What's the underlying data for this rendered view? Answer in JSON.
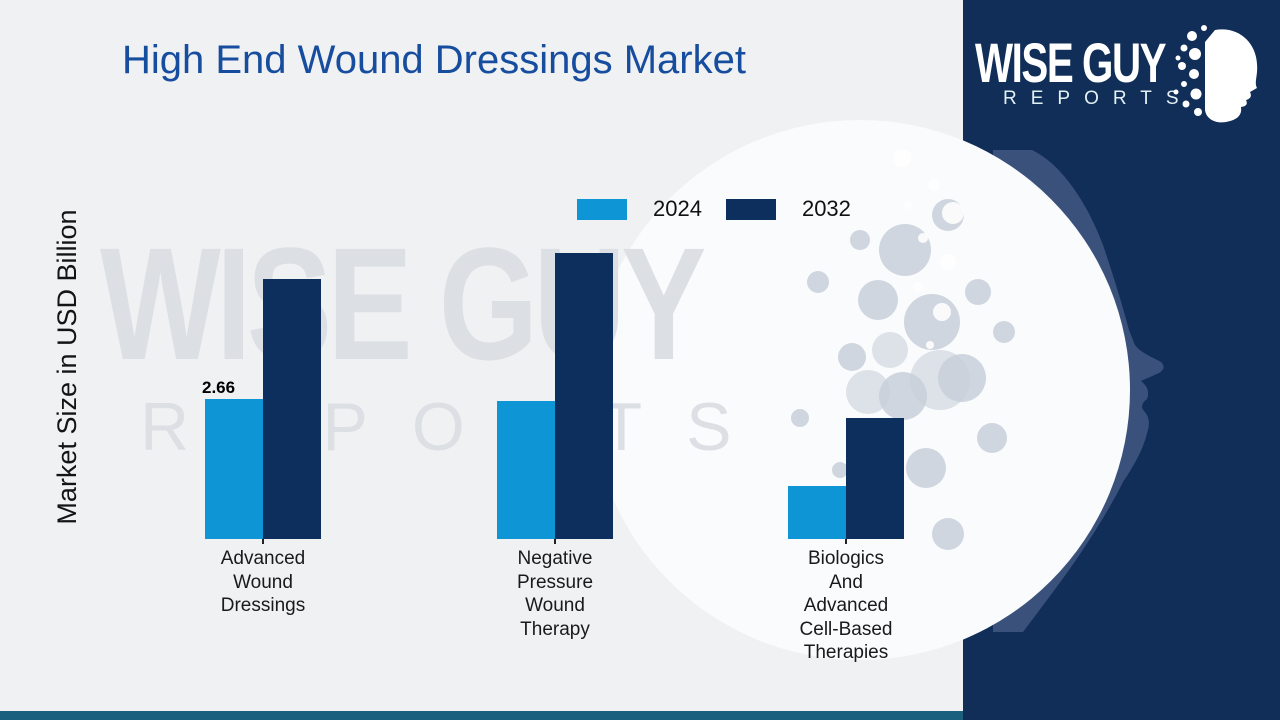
{
  "title": {
    "text": "High End Wound Dressings Market"
  },
  "y_axis": {
    "label": "Market Size in USD Billion"
  },
  "legend": {
    "position": "top-right",
    "items": [
      {
        "label": "2024",
        "color": "#0e95d6"
      },
      {
        "label": "2032",
        "color": "#0d2f5e"
      }
    ]
  },
  "chart_data": {
    "type": "bar",
    "title": "High End Wound Dressings Market",
    "ylabel": "Market Size in USD Billion",
    "xlabel": "",
    "grid": false,
    "ylim": [
      0,
      5.6
    ],
    "legend_position": "top-right",
    "categories": [
      "Advanced Wound Dressings",
      "Negative Pressure Wound Therapy",
      "Biologics And Advanced Cell-Based Therapies"
    ],
    "category_lines": [
      [
        "Advanced",
        "Wound",
        "Dressings"
      ],
      [
        "Negative",
        "Pressure",
        "Wound",
        "Therapy"
      ],
      [
        "Biologics",
        "And",
        "Advanced",
        "Cell-Based",
        "Therapies"
      ]
    ],
    "series": [
      {
        "name": "2024",
        "color": "#0e95d6",
        "values": [
          2.66,
          2.62,
          1.01
        ]
      },
      {
        "name": "2032",
        "color": "#0d2f5e",
        "values": [
          4.94,
          5.43,
          2.3
        ]
      }
    ],
    "data_labels": [
      {
        "series": 0,
        "category": 0,
        "text": "2.66"
      }
    ]
  },
  "watermark": {
    "line1": "WISE GUY",
    "line2": "REPORTS"
  },
  "logo": {
    "line1": "WISE GUY",
    "line2": "REPORTS"
  },
  "colors": {
    "background": "#f0f1f2",
    "panel": "#112e58",
    "panel_face": "#3a527b",
    "circle": "#fafbfd",
    "blob": "#c9d0da",
    "blob_light": "#dde2e8",
    "title": "#164d9e",
    "accent_teal": "#1a607e",
    "watermark": "#dcdfe4",
    "bar_2024": "#0e95d6",
    "bar_2032": "#0d2f5e"
  }
}
